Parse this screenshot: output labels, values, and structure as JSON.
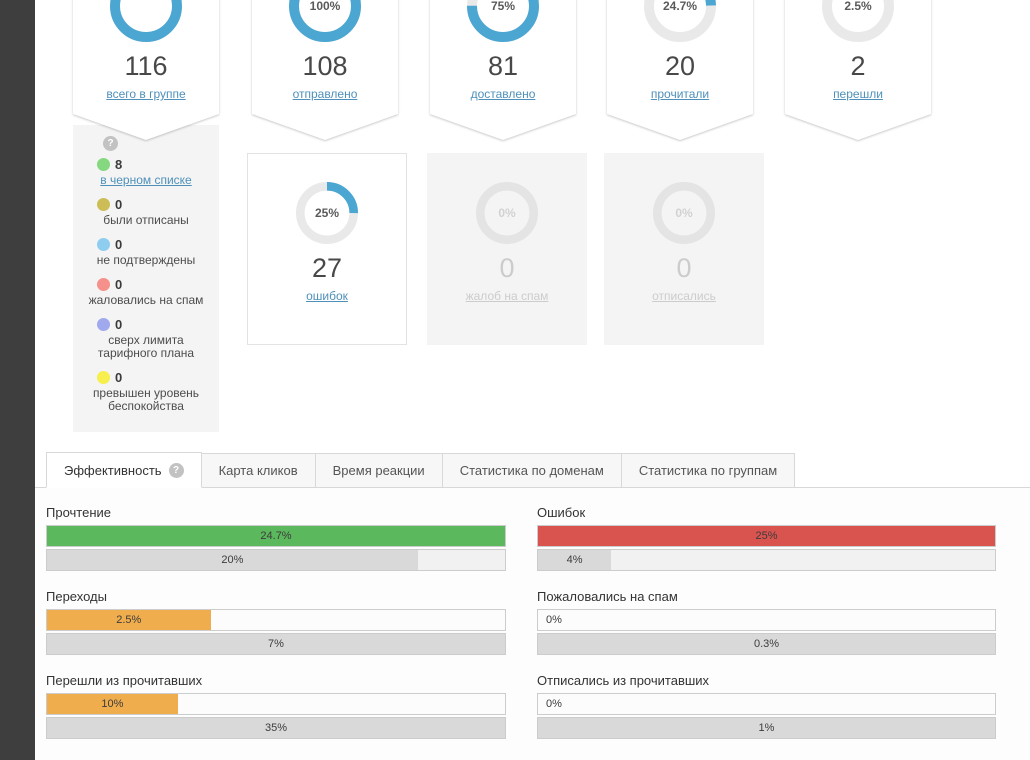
{
  "help_icon": "?",
  "colors": {
    "donut": "#4ba6d2",
    "donut_track": "#e9e9e9",
    "green": "#5cb85c",
    "red": "#d9534f",
    "orange": "#f0ad4e",
    "avg_gray": "#d9d9d9",
    "link": "#4e90ba"
  },
  "summary_cards": [
    {
      "value": "116",
      "label": "всего в группе",
      "donut": {
        "pct": 100
      }
    },
    {
      "percent": "100%",
      "value": "108",
      "label": "отправлено",
      "donut": {
        "pct": 100
      }
    },
    {
      "percent": "75%",
      "value": "81",
      "label": "доставлено",
      "donut": {
        "pct": 75
      }
    },
    {
      "percent": "24.7%",
      "value": "20",
      "label": "прочитали",
      "donut": {
        "pct": 24.7
      }
    },
    {
      "percent": "2.5%",
      "value": "2",
      "label": "перешли",
      "donut": {
        "pct": 2.5
      }
    }
  ],
  "legend": {
    "items": [
      {
        "color": "#85d87f",
        "value": "8",
        "label": "в черном списке",
        "link": true
      },
      {
        "color": "#cdbd56",
        "value": "0",
        "label": "были отписаны"
      },
      {
        "color": "#8ecdf0",
        "value": "0",
        "label": "не подтверждены"
      },
      {
        "color": "#f5908a",
        "value": "0",
        "label": "жаловались на спам"
      },
      {
        "color": "#a0a8ee",
        "value": "0",
        "label": "сверх лимита тарифного плана"
      },
      {
        "color": "#f7ef4d",
        "value": "0",
        "label": "превышен уровень беспокойства"
      }
    ]
  },
  "detail_cards": [
    {
      "percent": "25%",
      "value": "27",
      "label": "ошибок",
      "donut": {
        "pct": 25
      }
    },
    {
      "percent": "0%",
      "value": "0",
      "label": "жалоб на спам",
      "donut": {
        "pct": 0,
        "track": "#e4e4e4"
      },
      "muted": true
    },
    {
      "percent": "0%",
      "value": "0",
      "label": "отписались",
      "donut": {
        "pct": 0,
        "track": "#e4e4e4"
      },
      "muted": true
    }
  ],
  "tabs": [
    {
      "label": "Эффективность",
      "active": true
    },
    {
      "label": "Карта кликов"
    },
    {
      "label": "Время реакции"
    },
    {
      "label": "Статистика по доменам"
    },
    {
      "label": "Статистика по группам"
    }
  ],
  "metrics": {
    "left": [
      {
        "label": "Прочтение",
        "value": 24.7,
        "value_text": "24.7%",
        "avg": 20,
        "avg_text": "20%",
        "color": "#5cb85c"
      },
      {
        "label": "Переходы",
        "value": 2.5,
        "value_text": "2.5%",
        "avg": 7,
        "avg_text": "7%",
        "color": "#f0ad4e"
      },
      {
        "label": "Перешли из прочитавших",
        "value": 10,
        "value_text": "10%",
        "avg": 35,
        "avg_text": "35%",
        "color": "#f0ad4e"
      }
    ],
    "right": [
      {
        "label": "Ошибок",
        "value": 25,
        "value_text": "25%",
        "avg": 4,
        "avg_text": "4%",
        "color": "#d9534f"
      },
      {
        "label": "Пожаловались на спам",
        "value": 0,
        "value_text": "0%",
        "avg": 0.3,
        "avg_text": "0.3%",
        "color": "#f0ad4e"
      },
      {
        "label": "Отписались из прочитавших",
        "value": 0,
        "value_text": "0%",
        "avg": 1,
        "avg_text": "1%",
        "color": "#f0ad4e"
      }
    ]
  }
}
